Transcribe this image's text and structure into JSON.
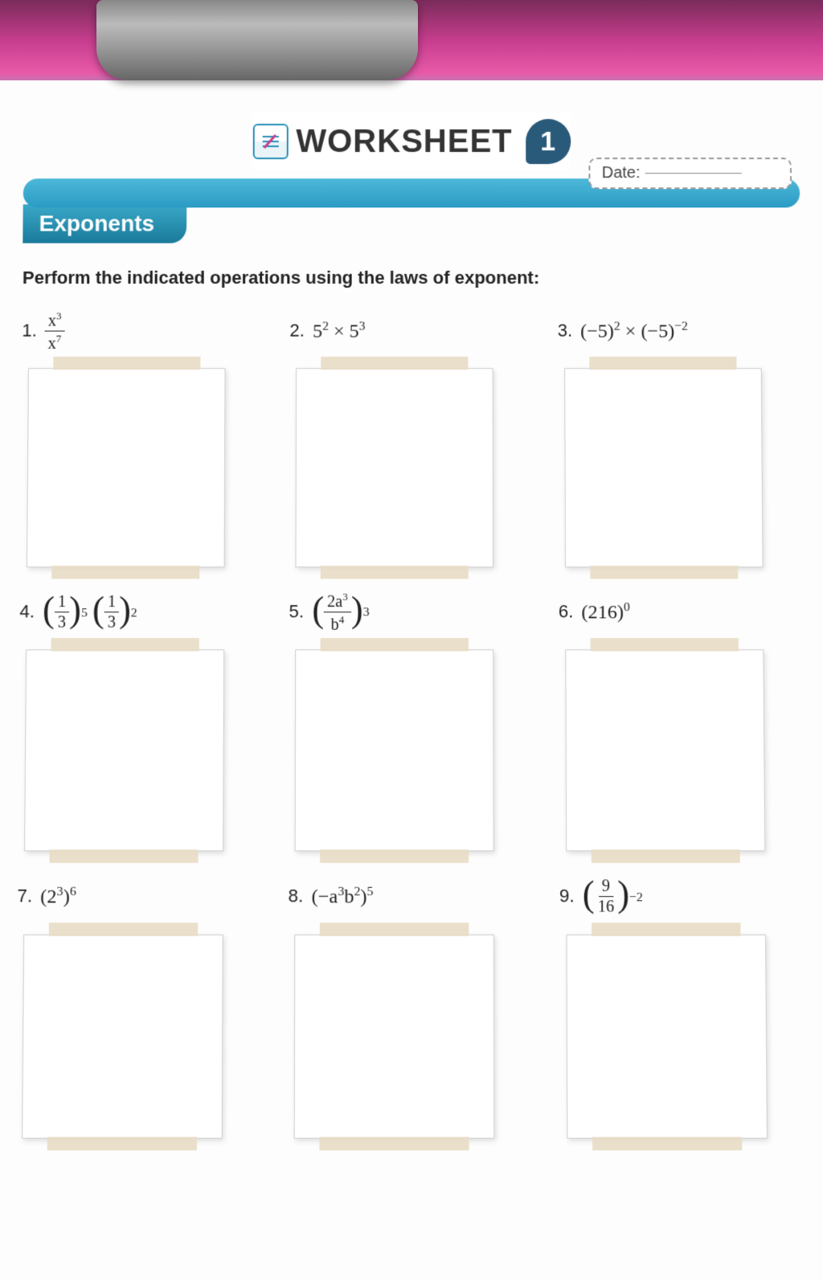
{
  "worksheet": {
    "title": "WORKSHEET",
    "number": "1",
    "date_label": "Date:",
    "section": "Exponents",
    "instruction": "Perform the indicated operations using the laws of exponent:"
  },
  "problems": [
    {
      "num": "1.",
      "expr_html": "<span class='frac'><span class='top'>x<sup>3</sup></span><span class='bot'>x<sup>7</sup></span></span>"
    },
    {
      "num": "2.",
      "expr_html": "5<sup>2</sup> × 5<sup>3</sup>"
    },
    {
      "num": "3.",
      "expr_html": "(−5)<sup>2</sup> × (−5)<sup>−2</sup>"
    },
    {
      "num": "4.",
      "expr_html": "<span class='paren-frac'><span class='big-paren'>(</span><span class='frac'><span class='top'>1</span><span class='bot'>3</span></span><span class='big-paren'>)</span></span><sup>5</sup> <span class='paren-frac'><span class='big-paren'>(</span><span class='frac'><span class='top'>1</span><span class='bot'>3</span></span><span class='big-paren'>)</span></span><sup>2</sup>"
    },
    {
      "num": "5.",
      "expr_html": "<span class='paren-frac'><span class='big-paren'>(</span><span class='frac'><span class='top'>2a<sup>3</sup></span><span class='bot'>b<sup>4</sup></span></span><span class='big-paren'>)</span></span><sup>3</sup>"
    },
    {
      "num": "6.",
      "expr_html": "(216)<sup>0</sup>"
    },
    {
      "num": "7.",
      "expr_html": "(2<sup>3</sup>)<sup>6</sup>"
    },
    {
      "num": "8.",
      "expr_html": "(−a<sup>3</sup>b<sup>2</sup>)<sup>5</sup>"
    },
    {
      "num": "9.",
      "expr_html": "<span class='paren-frac'><span class='big-paren'>(</span><span class='frac'><span class='top'>9</span><span class='bot'>16</span></span><span class='big-paren'>)</span></span><sup>−2</sup>"
    }
  ],
  "style": {
    "accent_blue": "#2a9bc4",
    "dark_blue": "#2a5a7a",
    "tape_color": "#e8dcc4",
    "page_bg": "#fdfdfd",
    "clipboard_pink": "#c83e8f"
  }
}
